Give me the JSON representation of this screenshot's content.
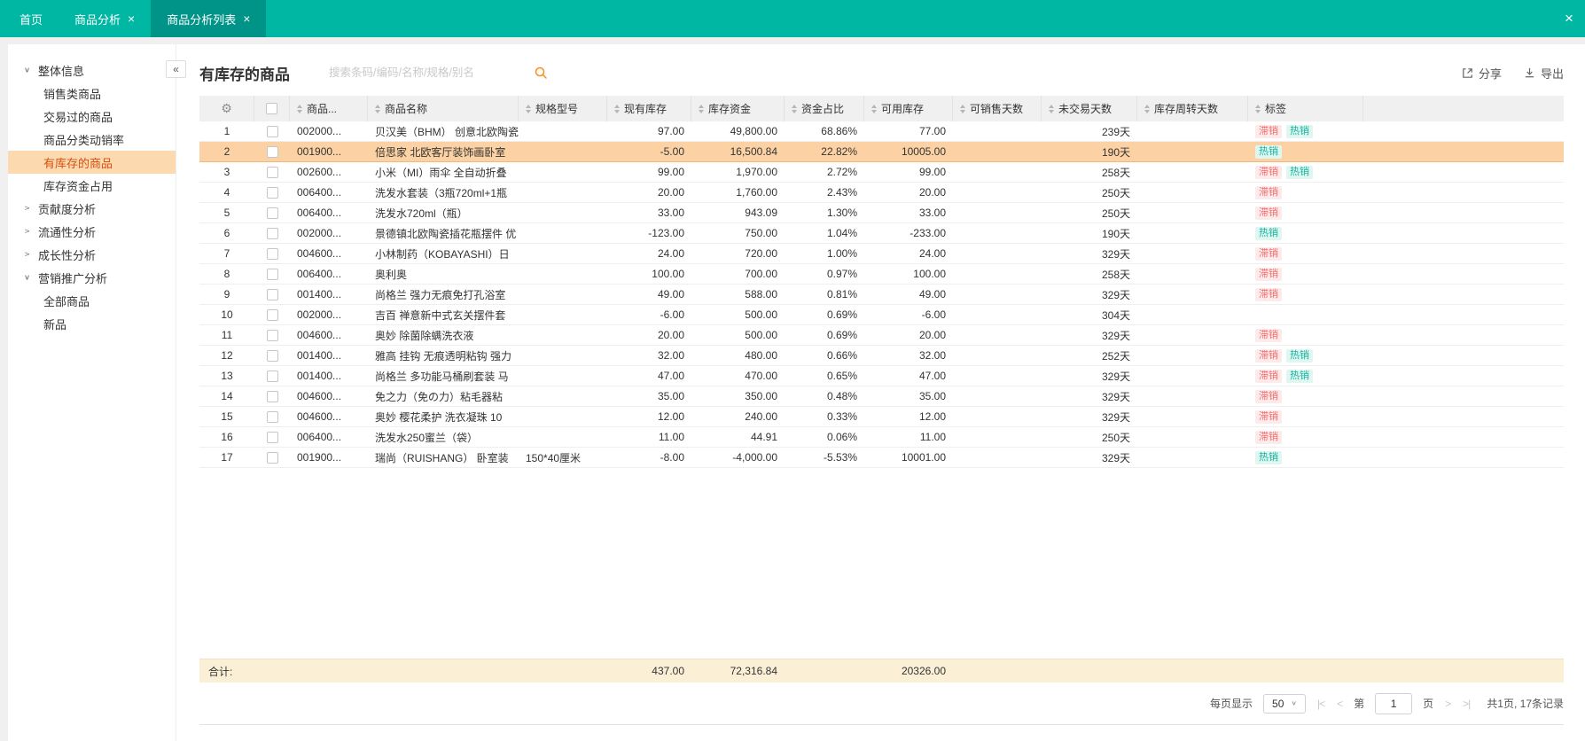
{
  "topbar": {
    "tabs": [
      {
        "label": "首页",
        "closable": false,
        "active": false
      },
      {
        "label": "商品分析",
        "closable": true,
        "active": false
      },
      {
        "label": "商品分析列表",
        "closable": true,
        "active": true
      }
    ],
    "tab_close_icon": "×",
    "window_close": "×"
  },
  "sidebar": {
    "collapse_icon": "«",
    "expanded_caret": "∨",
    "collapsed_caret": ">",
    "groups": [
      {
        "label": "整体信息",
        "expanded": true,
        "children": [
          {
            "label": "销售类商品",
            "active": false
          },
          {
            "label": "交易过的商品",
            "active": false
          },
          {
            "label": "商品分类动销率",
            "active": false
          },
          {
            "label": "有库存的商品",
            "active": true
          },
          {
            "label": "库存资金占用",
            "active": false
          }
        ]
      },
      {
        "label": "贡献度分析",
        "expanded": false,
        "children": []
      },
      {
        "label": "流通性分析",
        "expanded": false,
        "children": []
      },
      {
        "label": "成长性分析",
        "expanded": false,
        "children": []
      },
      {
        "label": "营销推广分析",
        "expanded": true,
        "children": [
          {
            "label": "全部商品",
            "active": false
          },
          {
            "label": "新品",
            "active": false
          }
        ]
      }
    ]
  },
  "main": {
    "title": "有库存的商品",
    "search": {
      "placeholder": "搜索条码/编码/名称/规格/别名"
    },
    "actions": {
      "share": "分享",
      "export": "导出"
    }
  },
  "table": {
    "settings_icon": "⚙",
    "columns": [
      "商品...",
      "商品名称",
      "规格型号",
      "现有库存",
      "库存资金",
      "资金占比",
      "可用库存",
      "可销售天数",
      "未交易天数",
      "库存周转天数",
      "标签"
    ],
    "tag_types": {
      "滞销": "stagnant",
      "热销": "hot"
    },
    "rows": [
      {
        "index": "1",
        "code": "002000...",
        "name": "贝汉美（BHM） 创意北欧陶瓷",
        "spec": "",
        "stock": "97.00",
        "fund": "49,800.00",
        "ratio": "68.86%",
        "avail": "77.00",
        "sell": "",
        "notrade": "239天",
        "turn": "",
        "tags": [
          "滞销",
          "热销"
        ],
        "selected": false
      },
      {
        "index": "2",
        "code": "001900...",
        "name": "倍思家 北欧客厅装饰画卧室",
        "spec": "",
        "stock": "-5.00",
        "fund": "16,500.84",
        "ratio": "22.82%",
        "avail": "10005.00",
        "sell": "",
        "notrade": "190天",
        "turn": "",
        "tags": [
          "热销"
        ],
        "selected": true
      },
      {
        "index": "3",
        "code": "002600...",
        "name": "小米（MI）雨伞 全自动折叠",
        "spec": "",
        "stock": "99.00",
        "fund": "1,970.00",
        "ratio": "2.72%",
        "avail": "99.00",
        "sell": "",
        "notrade": "258天",
        "turn": "",
        "tags": [
          "滞销",
          "热销"
        ],
        "selected": false
      },
      {
        "index": "4",
        "code": "006400...",
        "name": "洗发水套装（3瓶720ml+1瓶",
        "spec": "",
        "stock": "20.00",
        "fund": "1,760.00",
        "ratio": "2.43%",
        "avail": "20.00",
        "sell": "",
        "notrade": "250天",
        "turn": "",
        "tags": [
          "滞销"
        ],
        "selected": false
      },
      {
        "index": "5",
        "code": "006400...",
        "name": "洗发水720ml（瓶）",
        "spec": "",
        "stock": "33.00",
        "fund": "943.09",
        "ratio": "1.30%",
        "avail": "33.00",
        "sell": "",
        "notrade": "250天",
        "turn": "",
        "tags": [
          "滞销"
        ],
        "selected": false
      },
      {
        "index": "6",
        "code": "002000...",
        "name": "景德镇北欧陶瓷插花瓶摆件 优",
        "spec": "",
        "stock": "-123.00",
        "fund": "750.00",
        "ratio": "1.04%",
        "avail": "-233.00",
        "sell": "",
        "notrade": "190天",
        "turn": "",
        "tags": [
          "热销"
        ],
        "selected": false
      },
      {
        "index": "7",
        "code": "004600...",
        "name": "小林制药（KOBAYASHI）日",
        "spec": "",
        "stock": "24.00",
        "fund": "720.00",
        "ratio": "1.00%",
        "avail": "24.00",
        "sell": "",
        "notrade": "329天",
        "turn": "",
        "tags": [
          "滞销"
        ],
        "selected": false
      },
      {
        "index": "8",
        "code": "006400...",
        "name": "奥利奥",
        "spec": "",
        "stock": "100.00",
        "fund": "700.00",
        "ratio": "0.97%",
        "avail": "100.00",
        "sell": "",
        "notrade": "258天",
        "turn": "",
        "tags": [
          "滞销"
        ],
        "selected": false
      },
      {
        "index": "9",
        "code": "001400...",
        "name": "尚格兰 强力无痕免打孔浴室",
        "spec": "",
        "stock": "49.00",
        "fund": "588.00",
        "ratio": "0.81%",
        "avail": "49.00",
        "sell": "",
        "notrade": "329天",
        "turn": "",
        "tags": [
          "滞销"
        ],
        "selected": false
      },
      {
        "index": "10",
        "code": "002000...",
        "name": "吉百 禅意新中式玄关摆件套",
        "spec": "",
        "stock": "-6.00",
        "fund": "500.00",
        "ratio": "0.69%",
        "avail": "-6.00",
        "sell": "",
        "notrade": "304天",
        "turn": "",
        "tags": [],
        "selected": false
      },
      {
        "index": "11",
        "code": "004600...",
        "name": "奥妙 除菌除螨洗衣液",
        "spec": "",
        "stock": "20.00",
        "fund": "500.00",
        "ratio": "0.69%",
        "avail": "20.00",
        "sell": "",
        "notrade": "329天",
        "turn": "",
        "tags": [
          "滞销"
        ],
        "selected": false
      },
      {
        "index": "12",
        "code": "001400...",
        "name": "雅高 挂钩 无痕透明粘钩 强力",
        "spec": "",
        "stock": "32.00",
        "fund": "480.00",
        "ratio": "0.66%",
        "avail": "32.00",
        "sell": "",
        "notrade": "252天",
        "turn": "",
        "tags": [
          "滞销",
          "热销"
        ],
        "selected": false
      },
      {
        "index": "13",
        "code": "001400...",
        "name": "尚格兰 多功能马桶刷套装 马",
        "spec": "",
        "stock": "47.00",
        "fund": "470.00",
        "ratio": "0.65%",
        "avail": "47.00",
        "sell": "",
        "notrade": "329天",
        "turn": "",
        "tags": [
          "滞销",
          "热销"
        ],
        "selected": false
      },
      {
        "index": "14",
        "code": "004600...",
        "name": "免之力（免の力）粘毛器粘",
        "spec": "",
        "stock": "35.00",
        "fund": "350.00",
        "ratio": "0.48%",
        "avail": "35.00",
        "sell": "",
        "notrade": "329天",
        "turn": "",
        "tags": [
          "滞销"
        ],
        "selected": false
      },
      {
        "index": "15",
        "code": "004600...",
        "name": "奥妙 樱花柔护 洗衣凝珠 10",
        "spec": "",
        "stock": "12.00",
        "fund": "240.00",
        "ratio": "0.33%",
        "avail": "12.00",
        "sell": "",
        "notrade": "329天",
        "turn": "",
        "tags": [
          "滞销"
        ],
        "selected": false
      },
      {
        "index": "16",
        "code": "006400...",
        "name": "洗发水250蜜兰（袋）",
        "spec": "",
        "stock": "11.00",
        "fund": "44.91",
        "ratio": "0.06%",
        "avail": "11.00",
        "sell": "",
        "notrade": "250天",
        "turn": "",
        "tags": [
          "滞销"
        ],
        "selected": false
      },
      {
        "index": "17",
        "code": "001900...",
        "name": "瑞尚（RUISHANG） 卧室装",
        "spec": "150*40厘米",
        "stock": "-8.00",
        "fund": "-4,000.00",
        "ratio": "-5.53%",
        "avail": "10001.00",
        "sell": "",
        "notrade": "329天",
        "turn": "",
        "tags": [
          "热销"
        ],
        "selected": false
      }
    ],
    "summary": {
      "label": "合计:",
      "stock": "437.00",
      "fund": "72,316.84",
      "available": "20326.00"
    }
  },
  "pagination": {
    "page_size_label": "每页显示",
    "page_size": "50",
    "first": "|<",
    "prev": "<",
    "next": ">",
    "last": ">|",
    "page_prefix": "第",
    "page_value": "1",
    "page_suffix": "页",
    "total_text": "共1页, 17条记录"
  },
  "colors": {
    "accent": "#00b7a3",
    "tab_active": "#009488",
    "sidebar_selected_bg": "#fdd9b0",
    "sidebar_selected_text": "#d7500f",
    "selected_row_bg": "#fcd2a4",
    "tag_stagnant": "#f56c6c",
    "tag_hot": "#17b3a0",
    "summary_bg": "#fbf0d6",
    "search_icon": "#ff8a1e"
  }
}
